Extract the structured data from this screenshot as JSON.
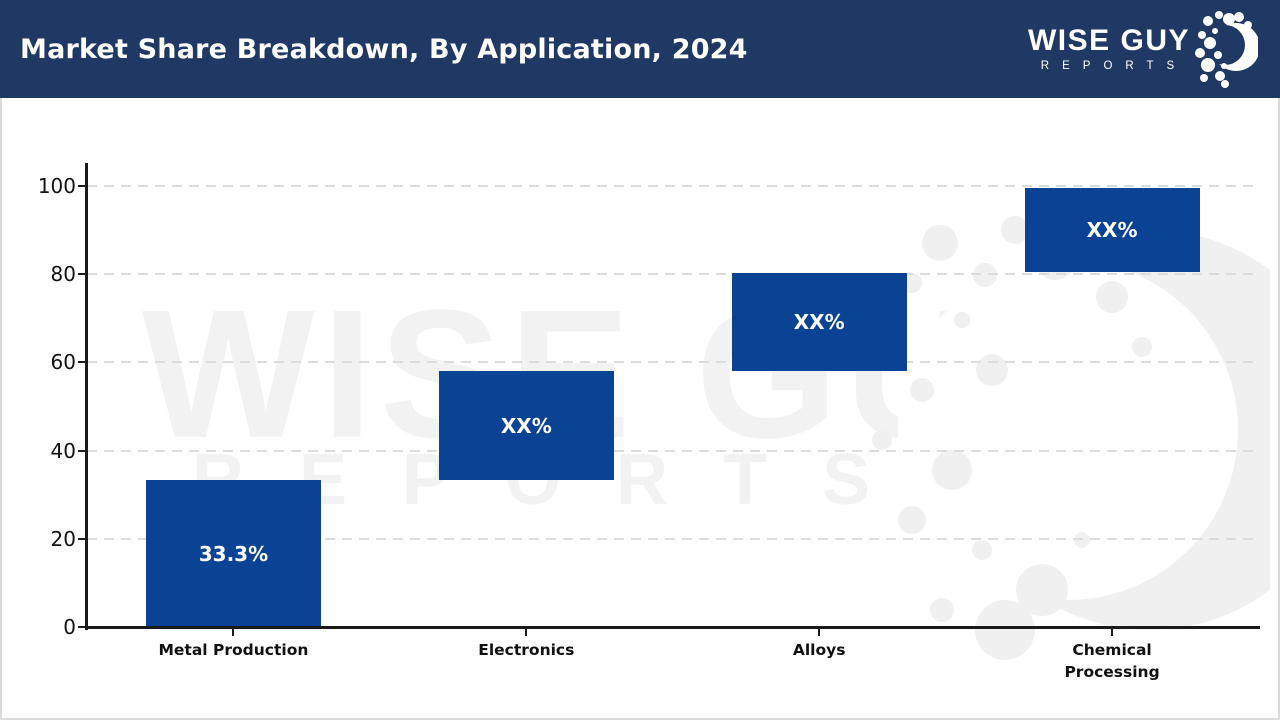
{
  "header": {
    "title": "Market Share Breakdown, By Application, 2024",
    "logo": {
      "line1": "WISE GUY",
      "line2": "REPORTS"
    }
  },
  "watermark": {
    "line1": "WISE GUY",
    "line2": "REPORTS"
  },
  "colors": {
    "header_bg": "#203864",
    "bar": "#0a4294",
    "bar_label": "#ffffff",
    "grid": "#dcdcdc",
    "axis": "#1a1a1a",
    "watermark": "#f2f2f2",
    "watermark_head": "#f0f0f0"
  },
  "chart_data": {
    "type": "bar",
    "subtype": "waterfall",
    "title": "Market Share Breakdown, By Application, 2024",
    "categories": [
      "Metal Production",
      "Electronics",
      "Alloys",
      "Chemical\nProcessing"
    ],
    "segments": [
      {
        "category": "Metal Production",
        "start": 0,
        "end": 33.3,
        "label": "33.3%"
      },
      {
        "category": "Electronics",
        "start": 33.3,
        "end": 58,
        "label": "XX%"
      },
      {
        "category": "Alloys",
        "start": 58,
        "end": 80.2,
        "label": "XX%"
      },
      {
        "category": "Chemical\nProcessing",
        "start": 80.4,
        "end": 99.6,
        "label": "XX%"
      }
    ],
    "yticks": [
      0,
      20,
      40,
      60,
      80,
      100
    ],
    "ylim": [
      0,
      105
    ],
    "xlabel": "",
    "ylabel": "",
    "grid": "horizontal-dashed",
    "legend": "none"
  }
}
